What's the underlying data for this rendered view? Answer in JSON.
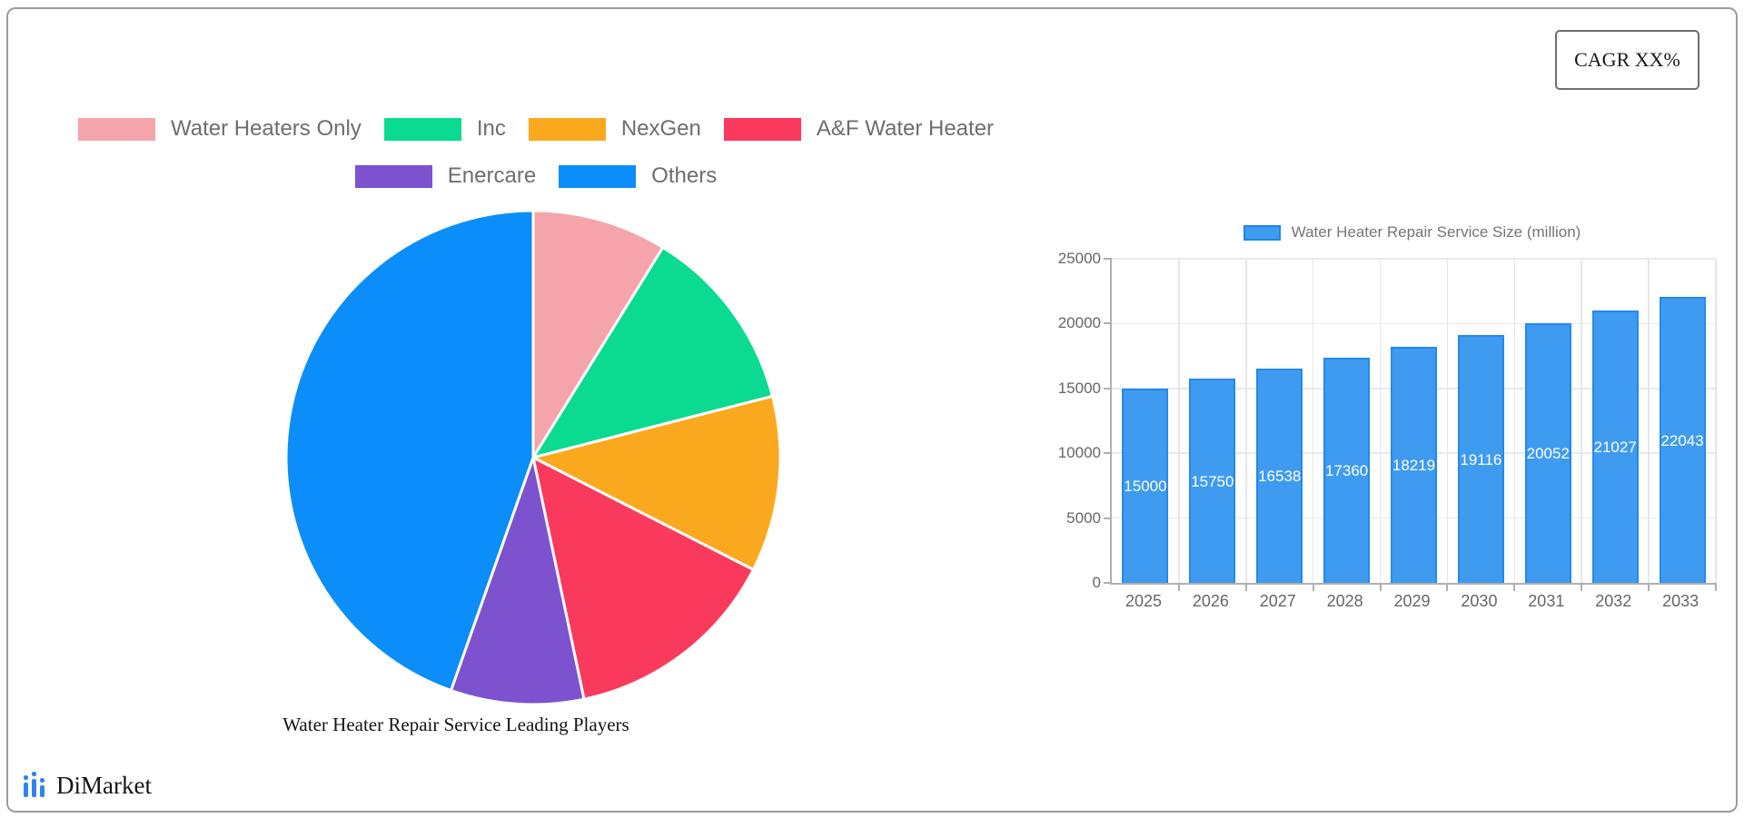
{
  "cagr_badge": {
    "label": "CAGR XX%"
  },
  "brand": {
    "name": "DiMarket"
  },
  "chart_data": [
    {
      "type": "pie",
      "title": "Water Heater Repair Service Leading Players",
      "legend_position": "top",
      "labels": [
        "Water Heaters Only",
        "Inc",
        "NexGen",
        "A&F Water Heater",
        "Enercare",
        "Others"
      ],
      "values_percent": [
        8.8,
        12.2,
        11.5,
        14.2,
        8.7,
        44.6
      ],
      "colors": [
        "#F4A4AA",
        "#0BDB90",
        "#FAA91F",
        "#FA3A5C",
        "#7C52CF",
        "#0B8EF9"
      ],
      "slice_border_color": "#FFFFFF"
    },
    {
      "type": "bar",
      "legend_label": "Water Heater Repair Service Size (million)",
      "categories": [
        "2025",
        "2026",
        "2027",
        "2028",
        "2029",
        "2030",
        "2031",
        "2032",
        "2033"
      ],
      "values": [
        15000,
        15750,
        16538,
        17360,
        18219,
        19116,
        20052,
        21027,
        22043
      ],
      "bar_color": "#3E9BF0",
      "bar_border_color": "#2589EC",
      "value_label_color": "#FFFFFF",
      "ylim": [
        0,
        25000
      ],
      "y_ticks": [
        0,
        5000,
        10000,
        15000,
        20000,
        25000
      ],
      "grid": true,
      "legend_position": "top"
    }
  ]
}
